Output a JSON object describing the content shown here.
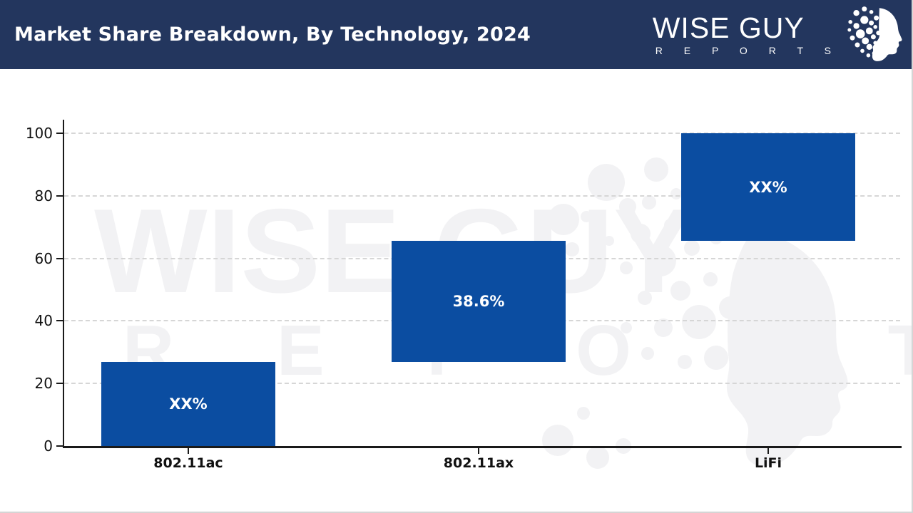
{
  "header": {
    "title": "Market Share Breakdown, By Technology, 2024",
    "logo": {
      "wordmark": "WISE GUY",
      "subtext": "R E P O R T S"
    }
  },
  "watermark": {
    "line1": "WISE GUY",
    "line2": "R E P O R T S"
  },
  "colors": {
    "header_bg": "#23365e",
    "bar": "#0b4da1",
    "bar_label": "#ffffff",
    "watermark": "#f2f2f4",
    "gridline": "#d6d6d6",
    "axis": "#1a1a1a",
    "edge_border": "#d5d5d5"
  },
  "chart_data": {
    "type": "bar",
    "variant": "floating-segment (cumulative market share breakdown)",
    "title": "Market Share Breakdown, By Technology, 2024",
    "categories": [
      "802.11ac",
      "802.11ax",
      "LiFi"
    ],
    "bars": [
      {
        "category": "802.11ac",
        "start": 0,
        "end": 26.9,
        "value": 26.9,
        "label": "XX%"
      },
      {
        "category": "802.11ax",
        "start": 26.9,
        "end": 65.5,
        "value": 38.6,
        "label": "38.6%"
      },
      {
        "category": "LiFi",
        "start": 65.5,
        "end": 100,
        "value": 34.5,
        "label": "XX%"
      }
    ],
    "xlabel": "",
    "ylabel": "",
    "ylim": [
      0,
      100
    ],
    "yticks": [
      0,
      20,
      40,
      60,
      80,
      100
    ],
    "grid": "horizontal dashed",
    "legend": "none"
  }
}
